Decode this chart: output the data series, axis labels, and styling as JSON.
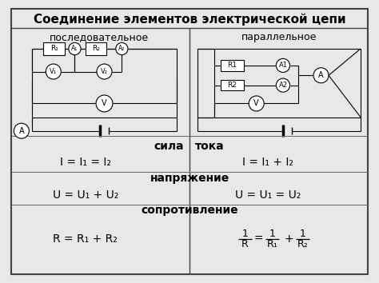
{
  "title": "Соединение элементов электрической цепи",
  "left_label": "последовательное",
  "right_label": "параллельное",
  "bg_color": "#e8e8e8",
  "title_fontsize": 11,
  "label_fontsize": 9,
  "formula_fontsize": 10,
  "section_fontsize": 10,
  "fig_w": 4.74,
  "fig_h": 3.54,
  "dpi": 100
}
